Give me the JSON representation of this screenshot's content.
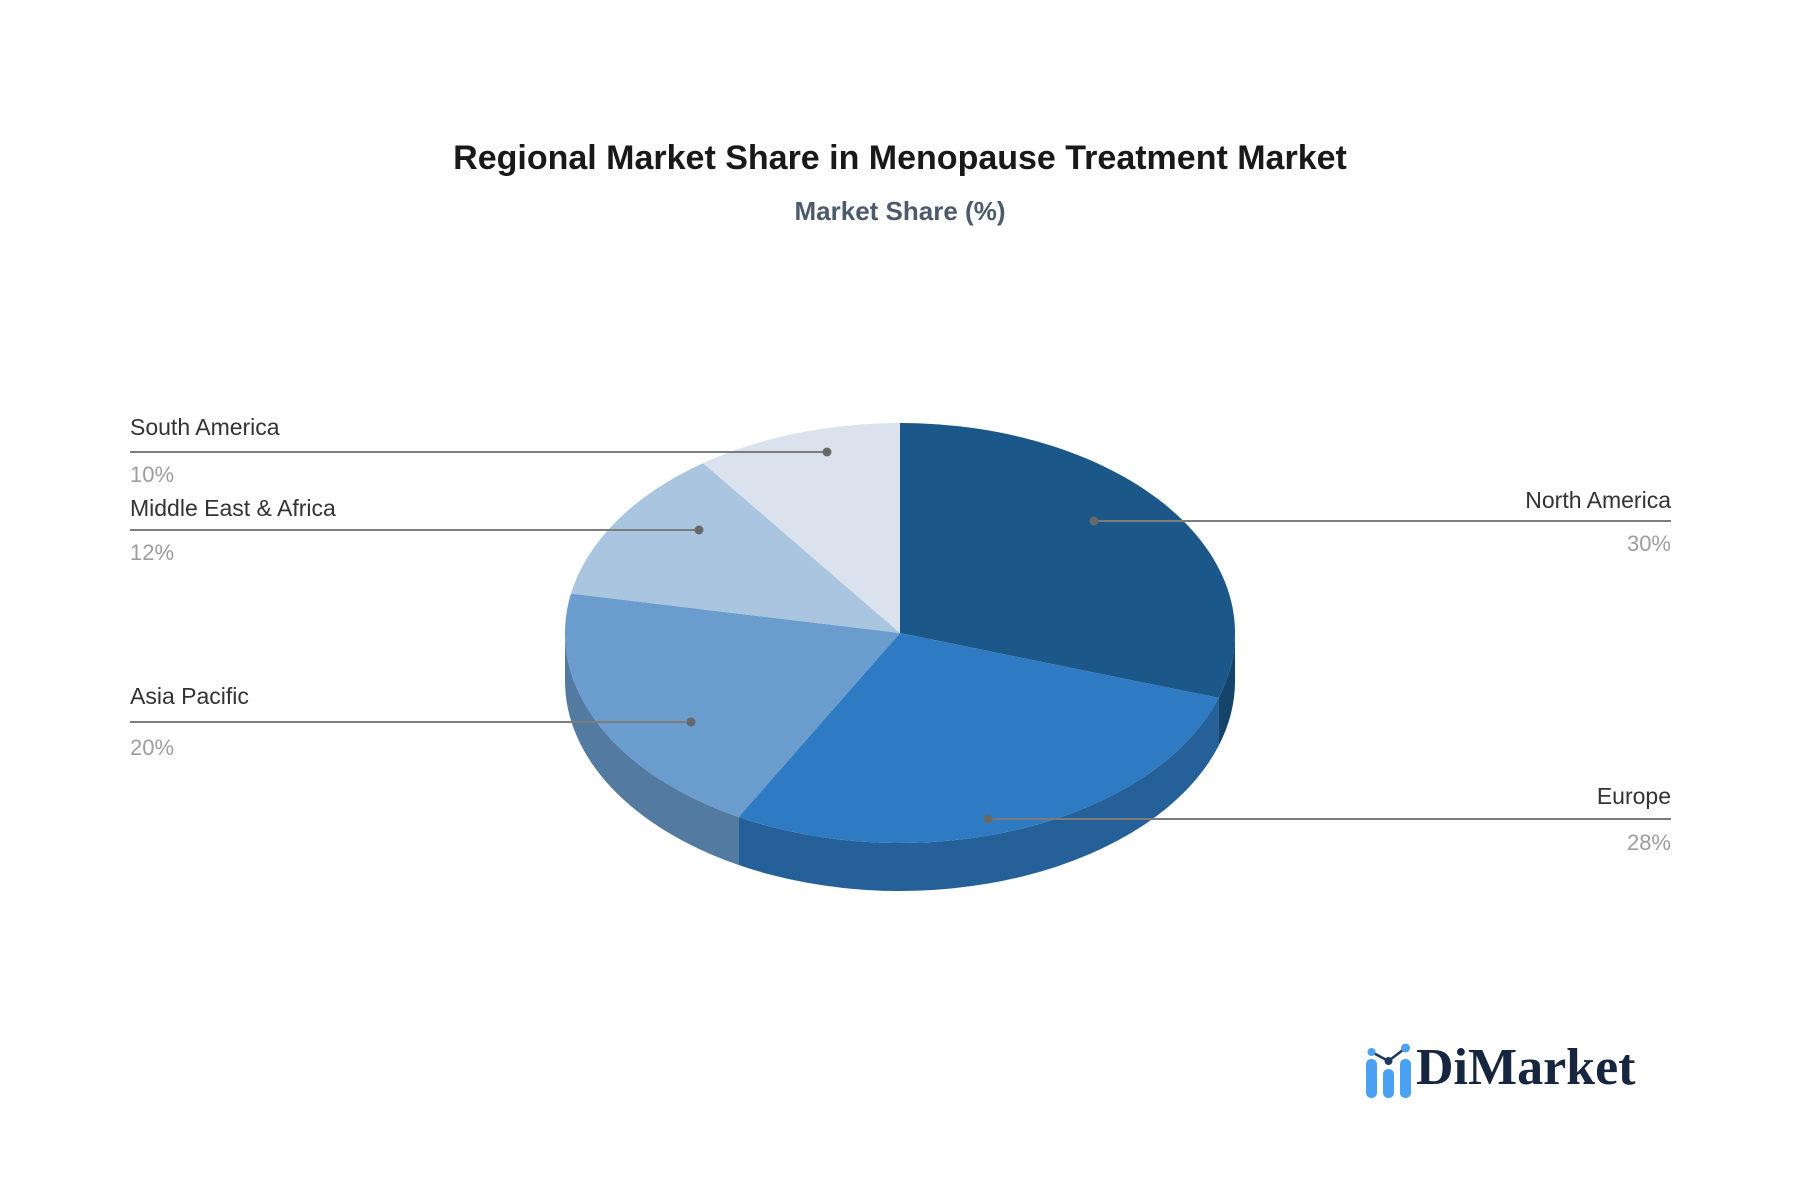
{
  "chart_data": {
    "type": "pie",
    "style": "3d",
    "title": "Regional Market Share in Menopause Treatment Market",
    "subtitle": "Market Share (%)",
    "unit": "%",
    "direction": "clockwise",
    "start_angle_deg": 0,
    "slices": [
      {
        "label": "North America",
        "value": 30,
        "pct_text": "30%",
        "color": "#1B5789"
      },
      {
        "label": "Europe",
        "value": 28,
        "pct_text": "28%",
        "color": "#2F7BC3"
      },
      {
        "label": "Asia Pacific",
        "value": 20,
        "pct_text": "20%",
        "color": "#6B9CCE"
      },
      {
        "label": "Middle East & Africa",
        "value": 12,
        "pct_text": "12%",
        "color": "#A9C5DF"
      },
      {
        "label": "South America",
        "value": 10,
        "pct_text": "10%",
        "color": "#DAE2EE"
      }
    ],
    "connector_color": "#7c7c7c",
    "connector_dot_color": "#686868"
  },
  "branding": {
    "logo_text": "DiMarket",
    "logo_bar_color": "#4BA1F3",
    "logo_line_color": "#1f3a5f"
  }
}
